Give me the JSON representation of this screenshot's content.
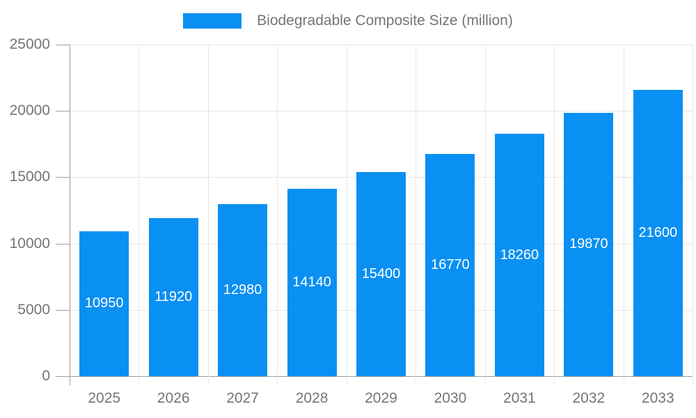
{
  "legend": {
    "label": "Biodegradable Composite Size (million)"
  },
  "colors": {
    "bar": "#0a90f2",
    "value_label": "#ffffff",
    "axis_text": "#757575",
    "grid_light": "#e6e6e6",
    "axis_line": "#9e9e9e"
  },
  "chart_data": {
    "type": "bar",
    "title": "",
    "xlabel": "",
    "ylabel": "",
    "categories": [
      "2025",
      "2026",
      "2027",
      "2028",
      "2029",
      "2030",
      "2031",
      "2032",
      "2033"
    ],
    "series": [
      {
        "name": "Biodegradable Composite Size (million)",
        "values": [
          10950,
          11920,
          12980,
          14140,
          15400,
          16770,
          18260,
          19870,
          21600
        ]
      }
    ],
    "value_labels": [
      "10950",
      "11920",
      "12980",
      "14140",
      "15400",
      "16770",
      "18260",
      "19870",
      "21600"
    ],
    "ylim": [
      0,
      25000
    ],
    "yticks": [
      0,
      5000,
      10000,
      15000,
      20000,
      25000
    ],
    "ytick_labels": [
      "0",
      "5000",
      "10000",
      "15000",
      "20000",
      "25000"
    ],
    "grid": true,
    "legend_position": "top",
    "value_label_position": "inside-center"
  }
}
